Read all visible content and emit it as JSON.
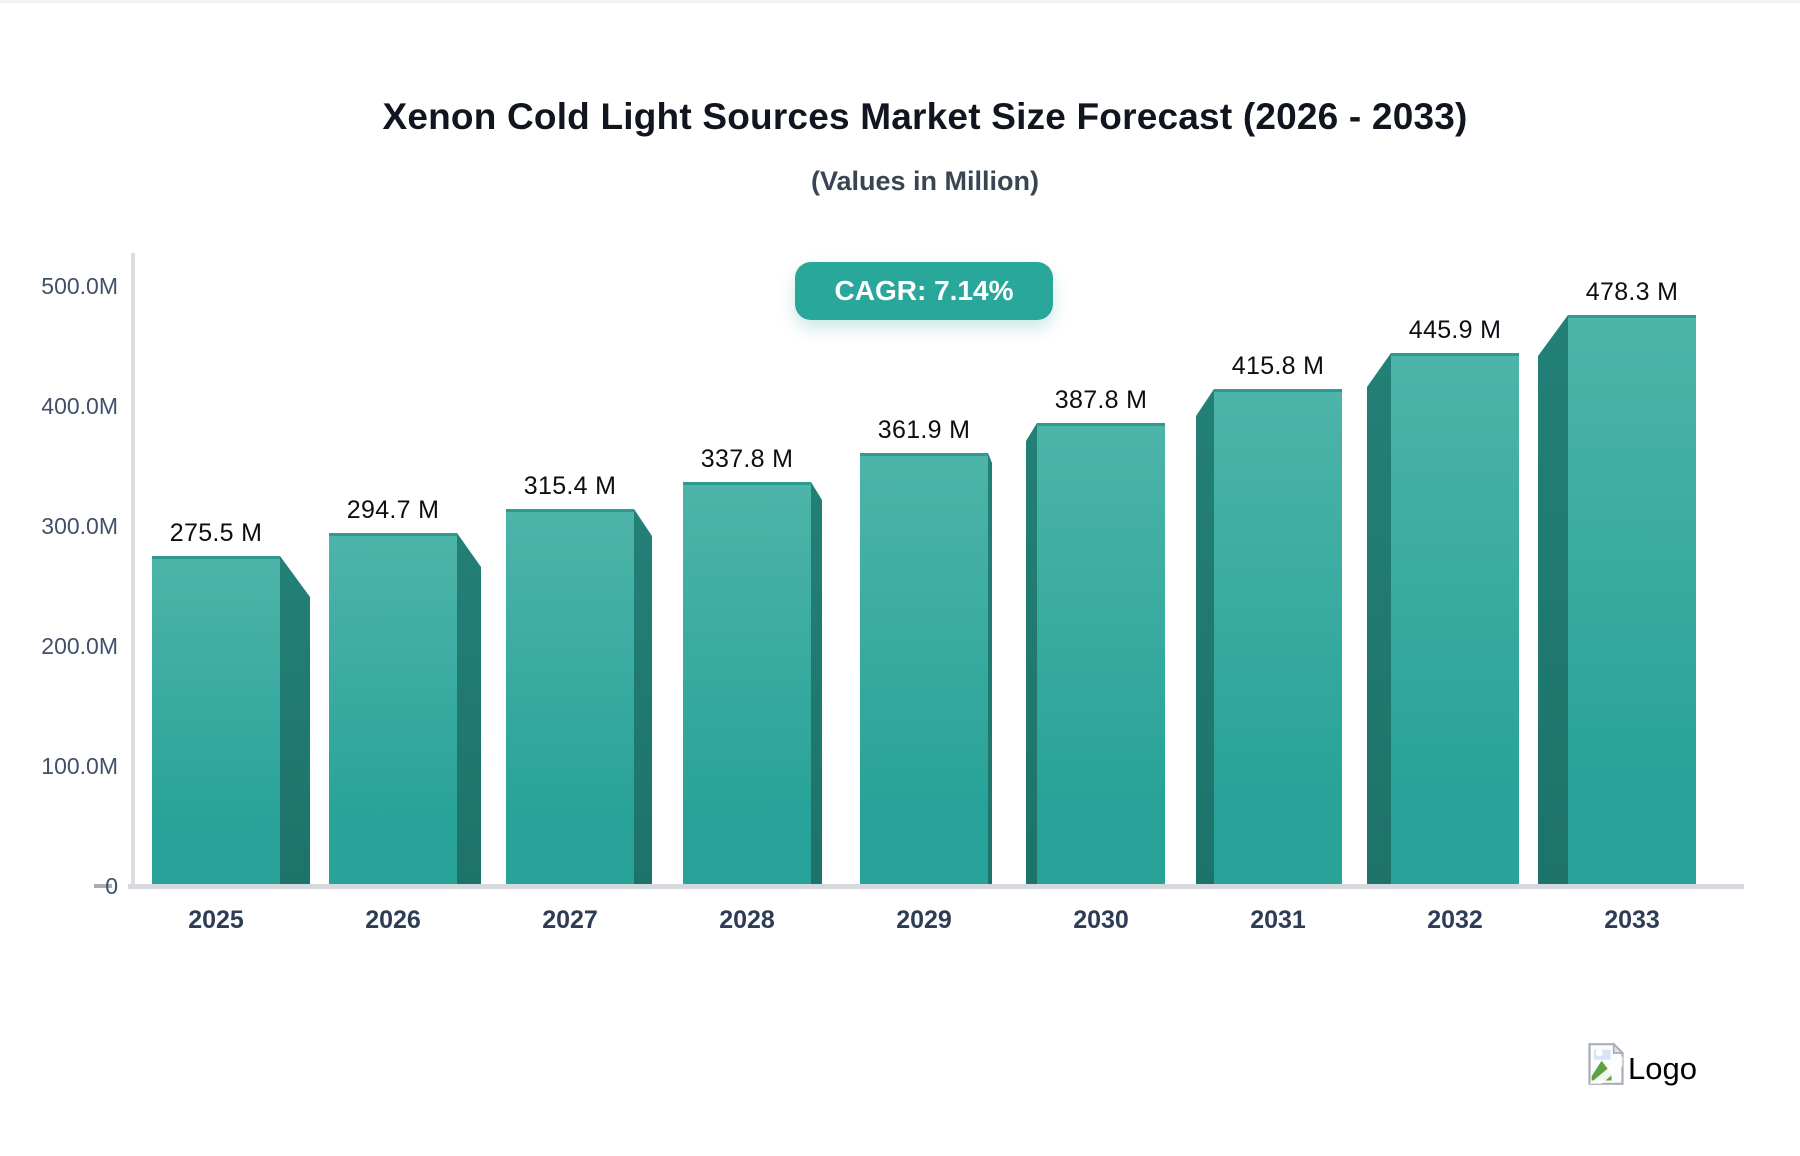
{
  "header": {
    "title": "Xenon Cold Light Sources Market Size Forecast (2026 - 2033)",
    "subtitle": "(Values in Million)"
  },
  "badge": {
    "label": "CAGR: 7.14%"
  },
  "chart_data": {
    "type": "bar",
    "title": "Xenon Cold Light Sources Market Size Forecast (2026 - 2033)",
    "subtitle": "(Values in Million)",
    "categories": [
      "2025",
      "2026",
      "2027",
      "2028",
      "2029",
      "2030",
      "2031",
      "2032",
      "2033"
    ],
    "values": [
      275.5,
      294.7,
      315.4,
      337.8,
      361.9,
      387.8,
      415.8,
      445.9,
      478.3
    ],
    "value_labels": [
      "275.5 M",
      "294.7 M",
      "315.4 M",
      "337.8 M",
      "361.9 M",
      "387.8 M",
      "415.8 M",
      "445.9 M",
      "478.3 M"
    ],
    "unit": "Million",
    "xlabel": "",
    "ylabel": "",
    "ylim_millions": [
      0,
      500
    ],
    "ytick_labels": [
      "500.0M",
      "400.0M",
      "300.0M",
      "200.0M",
      "100.0M",
      "0"
    ],
    "grid": false,
    "legend": false,
    "annotations": [
      "CAGR: 7.14%"
    ],
    "bar_style": "3d-perspective"
  },
  "colors": {
    "bar_front_top": "#4db4a9",
    "bar_front_bottom": "#29a399",
    "bar_side_top": "#238077",
    "bar_side_bottom": "#1d736a",
    "bar_top_edge": "#2f9a8e",
    "badge_bg": "#2aa79b",
    "badge_text": "#ffffff",
    "axis": "#d6d9de"
  },
  "logo": {
    "alt_text": "Logo",
    "icon": "broken-image-icon"
  }
}
